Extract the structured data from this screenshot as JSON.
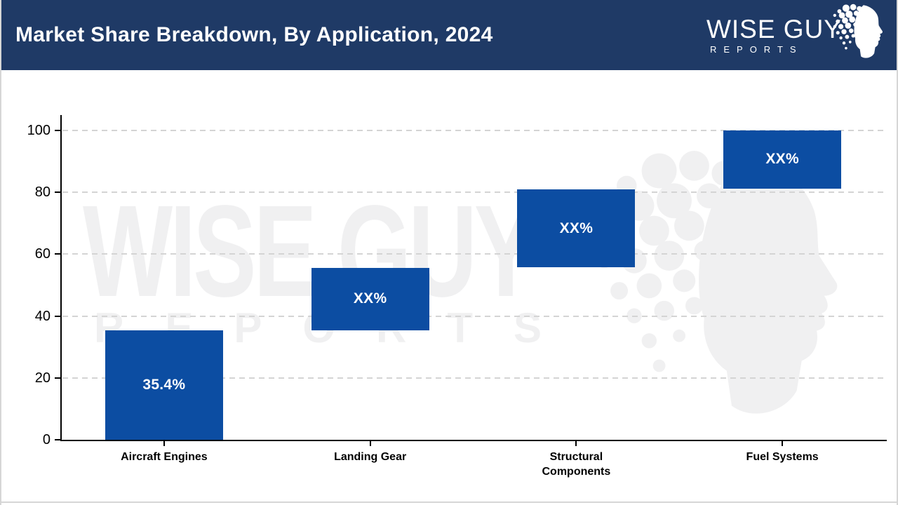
{
  "header": {
    "title": "Market Share Breakdown, By Application, 2024",
    "logo": {
      "line1": "WISE GUY",
      "line2": "REPORTS"
    }
  },
  "watermark": {
    "line1": "WISE GUY",
    "line2": "REPORTS"
  },
  "chart_data": {
    "type": "bar",
    "subtype": "waterfall",
    "title": "Market Share Breakdown, By Application, 2024",
    "categories": [
      "Aircraft Engines",
      "Landing Gear",
      "Structural Components",
      "Fuel Systems"
    ],
    "bars": [
      {
        "category": "Aircraft Engines",
        "from": 0,
        "to": 35.4,
        "label": "35.4%"
      },
      {
        "category": "Landing Gear",
        "from": 35.4,
        "to": 55.6,
        "label": "XX%"
      },
      {
        "category": "Structural Components",
        "from": 55.7,
        "to": 81.0,
        "label": "XX%"
      },
      {
        "category": "Fuel Systems",
        "from": 81.2,
        "to": 100,
        "label": "XX%"
      }
    ],
    "ylim": [
      0,
      100
    ],
    "yticks": [
      0,
      20,
      40,
      60,
      80,
      100
    ],
    "xlabel": "",
    "ylabel": "",
    "grid": {
      "horizontal": true,
      "style": "dashed"
    },
    "legend": null,
    "bar_color": "#0c4da2",
    "bar_label_color": "#ffffff"
  },
  "colors": {
    "header_bg": "#1f3a66",
    "bar_color": "#0c4da2",
    "grid_color": "#d4d4d4",
    "axis_color": "#000000",
    "watermark_color": "#f0f0f1",
    "title_text": "#ffffff",
    "label_text": "#000000",
    "border_color": "#d6d6d6"
  }
}
